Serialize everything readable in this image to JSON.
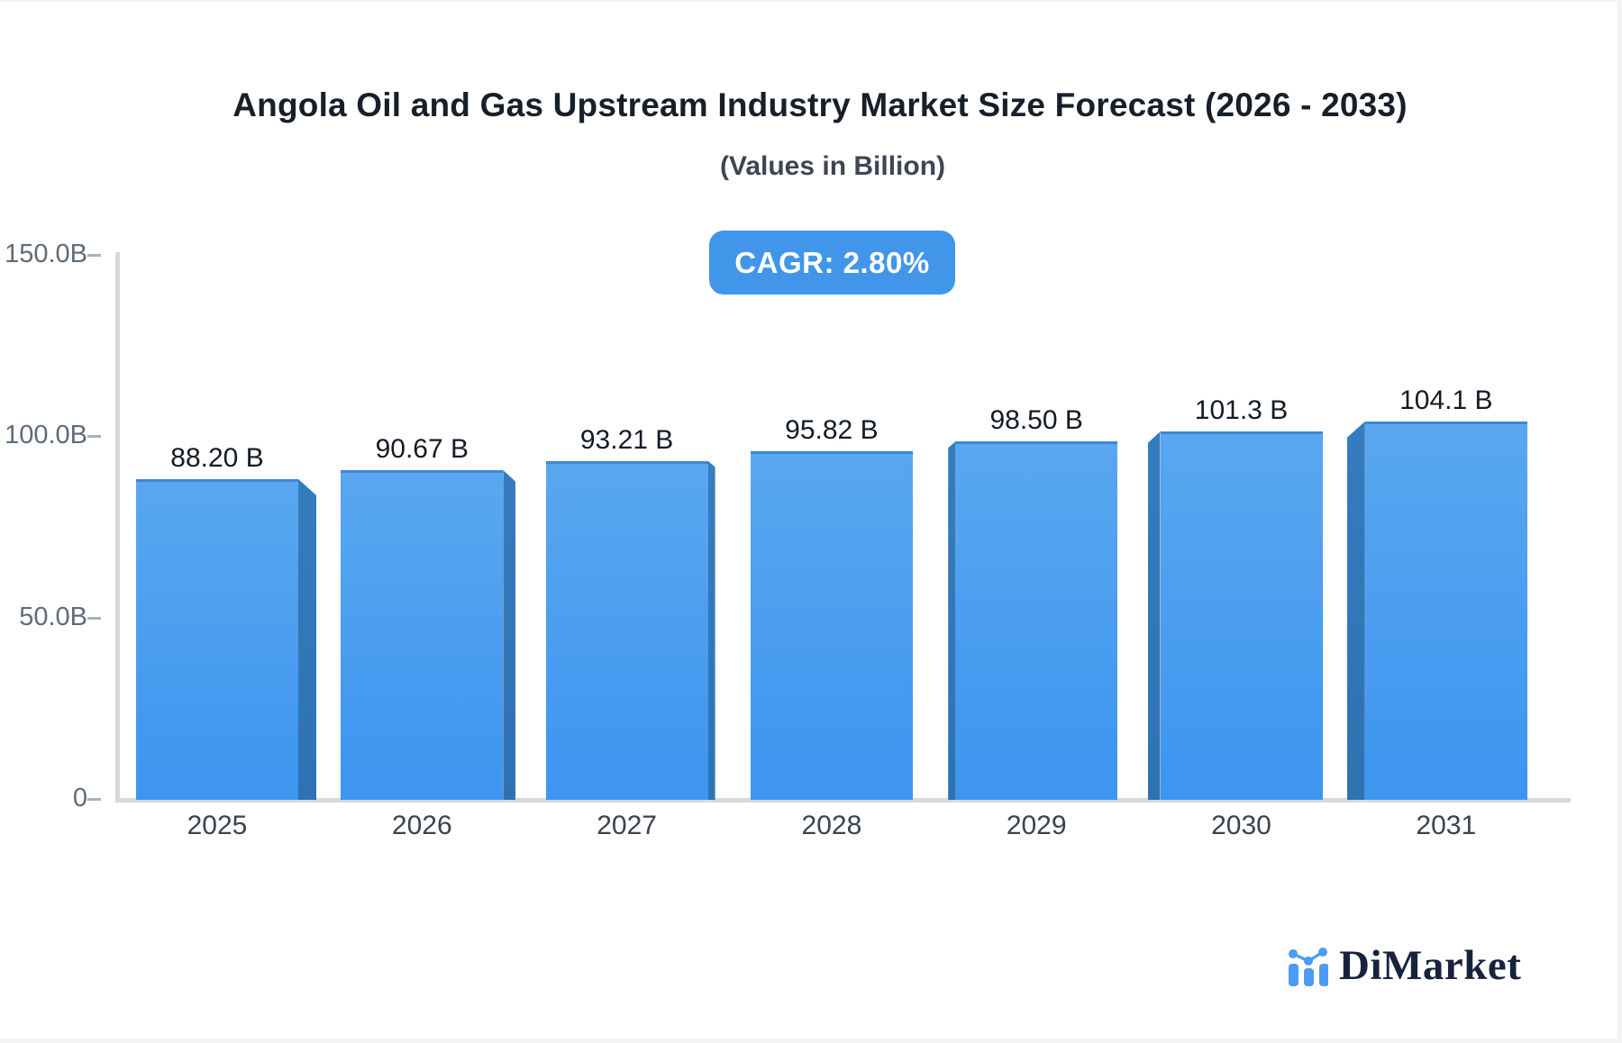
{
  "chart_data": {
    "type": "bar",
    "title": "Angola Oil and Gas Upstream Industry Market Size Forecast (2026 - 2033)",
    "subtitle": "(Values in Billion)",
    "cagr_label": "CAGR: 2.80%",
    "categories": [
      "2025",
      "2026",
      "2027",
      "2028",
      "2029",
      "2030",
      "2031"
    ],
    "values": [
      88.2,
      90.67,
      93.21,
      95.82,
      98.5,
      101.3,
      104.1
    ],
    "value_labels": [
      "88.20 B",
      "90.67 B",
      "93.21 B",
      "95.82 B",
      "98.50 B",
      "101.3 B",
      "104.1 B"
    ],
    "ylim": [
      0,
      150
    ],
    "y_ticks": [
      {
        "value": 150,
        "label": "150.0B"
      },
      {
        "value": 100,
        "label": "100.0B"
      },
      {
        "value": 50,
        "label": "50.0B"
      },
      {
        "value": 0,
        "label": "0"
      }
    ],
    "grid": false,
    "legend": false,
    "colors": {
      "bar_face_top": "#59a7ef",
      "bar_face_bottom": "#3d95f0",
      "bar_side": "#2e74b6",
      "bar_top_edge": "#3f86d6",
      "badge_background": "#4196ea",
      "badge_text": "#ffffff",
      "axis_line": "#d5d9dd",
      "logo_blue": "#4c9bf5",
      "logo_navy": "#17233c"
    }
  },
  "logo": {
    "text": "DiMarket"
  }
}
